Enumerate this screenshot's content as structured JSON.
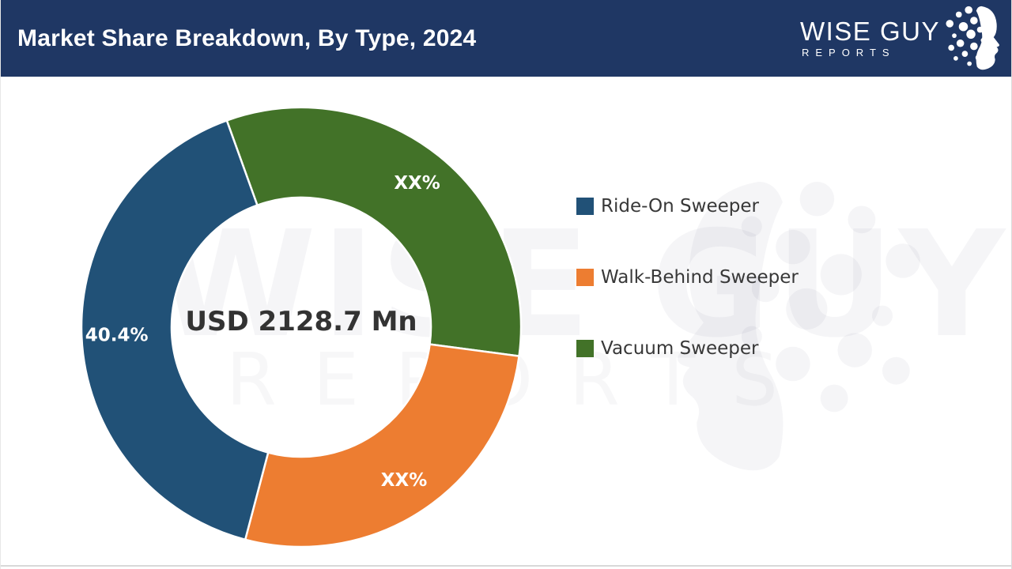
{
  "header": {
    "title": "Market Share Breakdown, By Type, 2024",
    "logo": {
      "line1": "WISE GUY",
      "line2": "REPORTS"
    }
  },
  "watermark": {
    "line1": "WISE GUY",
    "line2": "REPORTS"
  },
  "chart_data": {
    "type": "donut",
    "title": "Market Share Breakdown, By Type, 2024",
    "center_label": "USD 2128.7 Mn",
    "start_angle_deg": -19.8,
    "inner_radius_ratio": 0.59,
    "label_radius_ratio": 0.84,
    "label_color": "#ffffff",
    "slices_clockwise_from_top": [
      {
        "name": "Vacuum Sweeper",
        "value_pct": 32.6,
        "label": "XX%",
        "color": "#427228"
      },
      {
        "name": "Walk-Behind Sweeper",
        "value_pct": 27.0,
        "label": "XX%",
        "color": "#ED7D31"
      },
      {
        "name": "Ride-On Sweeper",
        "value_pct": 40.4,
        "label": "40.4%",
        "color": "#215177"
      }
    ],
    "legend": [
      {
        "label": "Ride-On Sweeper",
        "color": "#215177"
      },
      {
        "label": "Walk-Behind Sweeper",
        "color": "#ED7D31"
      },
      {
        "label": "Vacuum Sweeper",
        "color": "#427228"
      }
    ]
  },
  "colors": {
    "header_bg": "#1F3764",
    "text_dark": "#333333",
    "rule": "#d8d8d8"
  }
}
